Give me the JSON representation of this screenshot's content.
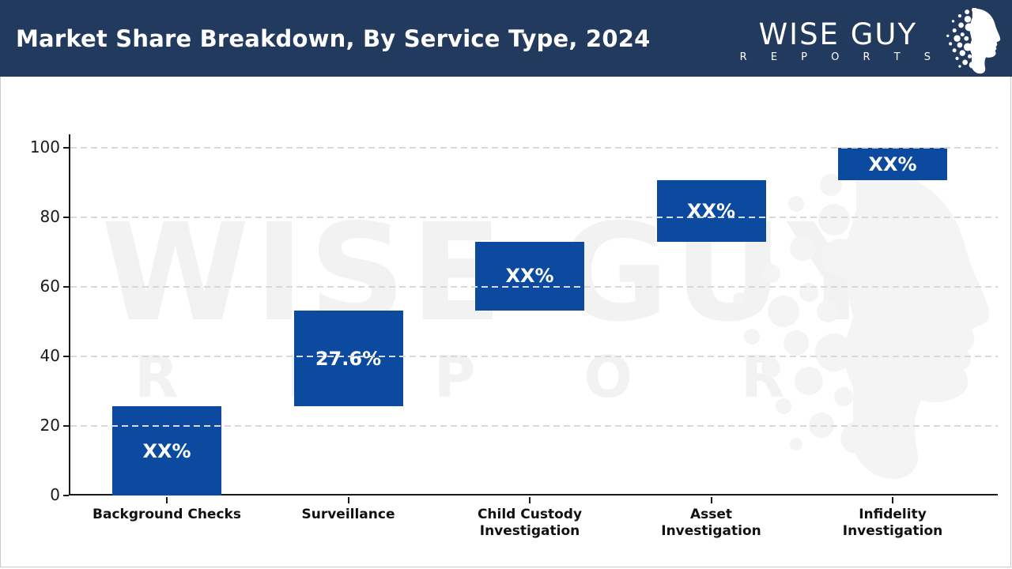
{
  "header": {
    "title": "Market Share Breakdown, By Service Type, 2024",
    "logo": {
      "line1": "WISE GUY",
      "line2": "R E P O R T S"
    }
  },
  "watermark": {
    "line1": "WISE GUY",
    "line2": "R E P O R T S"
  },
  "colors": {
    "header_bg": "#233a5f",
    "title_text": "#ffffff",
    "bar": "#0c4aa0",
    "bar_label": "#ffffff",
    "grid": "#d9d9d9",
    "axis": "#1a1a1a",
    "watermark": "#f2f2f2",
    "frame_border": "#cccccc"
  },
  "chart_data": {
    "type": "bar",
    "subtype": "waterfall-floating-bars",
    "title": "Market Share Breakdown, By Service Type, 2024",
    "xlabel": "",
    "ylabel": "",
    "ylim": [
      0,
      103.9
    ],
    "yticks": [
      0,
      20,
      40,
      60,
      80,
      100
    ],
    "grid": "dashed-horizontal",
    "legend": "none",
    "categories": [
      "Background Checks",
      "Surveillance",
      "Child Custody Investigation",
      "Asset Investigation",
      "Infidelity Investigation"
    ],
    "category_lines": [
      [
        "Background Checks"
      ],
      [
        "Surveillance"
      ],
      [
        "Child Custody",
        "Investigation"
      ],
      [
        "Asset",
        "Investigation"
      ],
      [
        "Infidelity",
        "Investigation"
      ]
    ],
    "segments": [
      {
        "category": "Background Checks",
        "start": 0,
        "end": 25.6,
        "value": 25.6,
        "label": "XX%"
      },
      {
        "category": "Surveillance",
        "start": 25.6,
        "end": 53.2,
        "value": 27.6,
        "label": "27.6%"
      },
      {
        "category": "Child Custody Investigation",
        "start": 53.2,
        "end": 73.0,
        "value": 19.8,
        "label": "XX%"
      },
      {
        "category": "Asset Investigation",
        "start": 73.0,
        "end": 90.6,
        "value": 17.6,
        "label": "XX%"
      },
      {
        "category": "Infidelity Investigation",
        "start": 90.6,
        "end": 100.0,
        "value": 9.4,
        "label": "XX%"
      }
    ]
  }
}
